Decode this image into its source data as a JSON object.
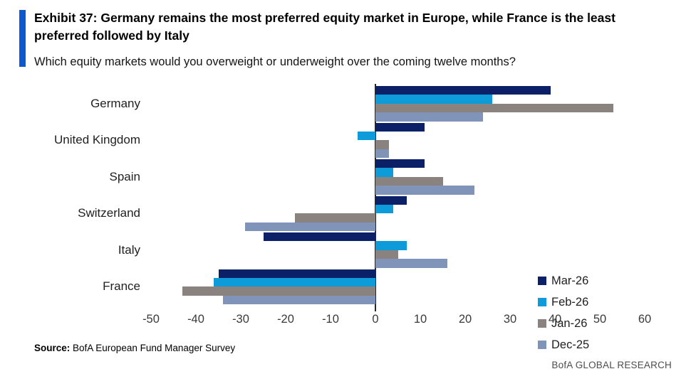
{
  "header": {
    "title": "Exhibit 37: Germany remains the most preferred equity market in Europe, while France is the least preferred followed by Italy",
    "subtitle": "Which equity markets would you overweight or underweight over the coming twelve months?",
    "accent_color": "#0d5ad0"
  },
  "chart_data": {
    "type": "bar",
    "orientation": "horizontal",
    "title": "",
    "xlabel": "",
    "ylabel": "",
    "categories": [
      "Germany",
      "United Kingdom",
      "Spain",
      "Switzerland",
      "Italy",
      "France"
    ],
    "series": [
      {
        "name": "Mar-26",
        "color": "#0c2068",
        "values": [
          39,
          11,
          11,
          7,
          -25,
          -35
        ]
      },
      {
        "name": "Feb-26",
        "color": "#0d9cd9",
        "values": [
          26,
          -4,
          4,
          4,
          7,
          -36
        ]
      },
      {
        "name": "Jan-26",
        "color": "#8a827e",
        "values": [
          53,
          3,
          15,
          -18,
          5,
          -43
        ]
      },
      {
        "name": "Dec-25",
        "color": "#8094ba",
        "values": [
          24,
          3,
          22,
          -29,
          16,
          -34
        ]
      }
    ],
    "xlim": [
      -50,
      60
    ],
    "x_ticks": [
      -50,
      -40,
      -30,
      -20,
      -10,
      0,
      10,
      20,
      30,
      40,
      50,
      60
    ],
    "grid": false,
    "legend_position": "middle-right",
    "zero_axis_color": "#26262b"
  },
  "footer": {
    "source_label": "Source:",
    "source_text": " BofA European Fund Manager Survey",
    "brand": "BofA GLOBAL RESEARCH"
  }
}
